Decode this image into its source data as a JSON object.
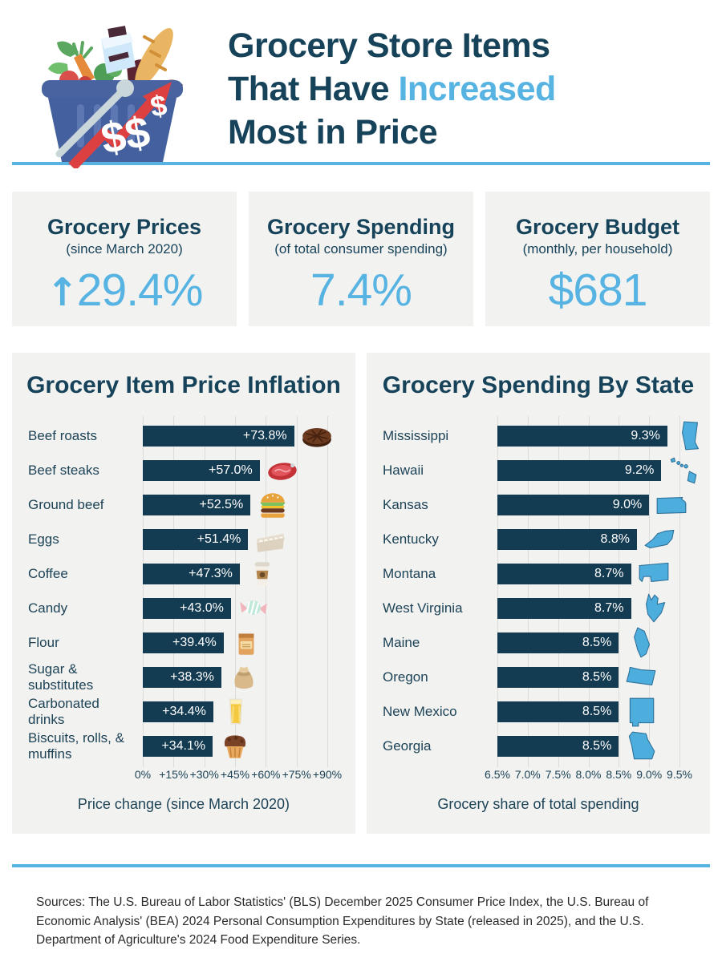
{
  "header": {
    "title_line1": "Grocery Store Items",
    "title_line2_prefix": "That Have ",
    "title_line2_highlight": "Increased",
    "title_line3": "Most in Price",
    "logo_dollars_large": "$$",
    "logo_dollars_small": "$"
  },
  "colors": {
    "navy": "#17435a",
    "light_blue": "#56b3e2",
    "bar_navy": "#133b52",
    "panel_bg": "#f2f2f1",
    "state_blue": "#4daede",
    "arrow_red": "#dd4040"
  },
  "stats": [
    {
      "title": "Grocery Prices",
      "subtitle": "(since March 2020)",
      "arrow": "↑",
      "value": "29.4%"
    },
    {
      "title": "Grocery Spending",
      "subtitle": "(of total consumer spending)",
      "arrow": "",
      "value": "7.4%"
    },
    {
      "title": "Grocery Budget",
      "subtitle": "(monthly, per household)",
      "arrow": "",
      "value": "$681"
    }
  ],
  "chart_data": [
    {
      "type": "bar",
      "orientation": "horizontal",
      "title": "Grocery Item Price Inflation",
      "categories": [
        "Beef roasts",
        "Beef steaks",
        "Ground beef",
        "Eggs",
        "Coffee",
        "Candy",
        "Flour",
        "Sugar & substitutes",
        "Carbonated drinks",
        "Biscuits, rolls, & muffins"
      ],
      "values": [
        73.8,
        57.0,
        52.5,
        51.4,
        47.3,
        43.0,
        39.4,
        38.3,
        34.4,
        34.1
      ],
      "bar_labels": [
        "+73.8%",
        "+57.0%",
        "+52.5%",
        "+51.4%",
        "+47.3%",
        "+43.0%",
        "+39.4%",
        "+38.3%",
        "+34.4%",
        "+34.1%"
      ],
      "icons": [
        "beef-roast",
        "beef-steak",
        "hamburger",
        "eggs",
        "coffee",
        "candy",
        "flour",
        "sugar",
        "soda",
        "muffin"
      ],
      "xlabel": "Price change (since March 2020)",
      "xlim": [
        0,
        90
      ],
      "ticks": [
        "0%",
        "+15%",
        "+30%",
        "+45%",
        "+60%",
        "+75%",
        "+90%"
      ],
      "grid": true,
      "legend": "none"
    },
    {
      "type": "bar",
      "orientation": "horizontal",
      "title": "Grocery Spending By State",
      "categories": [
        "Mississippi",
        "Hawaii",
        "Kansas",
        "Kentucky",
        "Montana",
        "West Virginia",
        "Maine",
        "Oregon",
        "New Mexico",
        "Georgia"
      ],
      "values": [
        9.3,
        9.2,
        9.0,
        8.8,
        8.7,
        8.7,
        8.5,
        8.5,
        8.5,
        8.5
      ],
      "bar_labels": [
        "9.3%",
        "9.2%",
        "9.0%",
        "8.8%",
        "8.7%",
        "8.7%",
        "8.5%",
        "8.5%",
        "8.5%",
        "8.5%"
      ],
      "icons": [
        "state-mississippi",
        "state-hawaii",
        "state-kansas",
        "state-kentucky",
        "state-montana",
        "state-west-virginia",
        "state-maine",
        "state-oregon",
        "state-new-mexico",
        "state-georgia"
      ],
      "xlabel": "Grocery share of total spending",
      "xlim": [
        6.5,
        9.5
      ],
      "ticks": [
        "6.5%",
        "7.0%",
        "7.5%",
        "8.0%",
        "8.5%",
        "9.0%",
        "9.5%"
      ],
      "grid": true,
      "legend": "none"
    }
  ],
  "footer": {
    "sources": "Sources: The U.S. Bureau of Labor Statistics' (BLS) December 2025 Consumer Price Index, the U.S. Bureau of Economic Analysis' (BEA) 2024 Personal Consumption Expenditures by State (released in 2025), and the U.S. Department of Agriculture's 2024 Food Expenditure Series."
  }
}
